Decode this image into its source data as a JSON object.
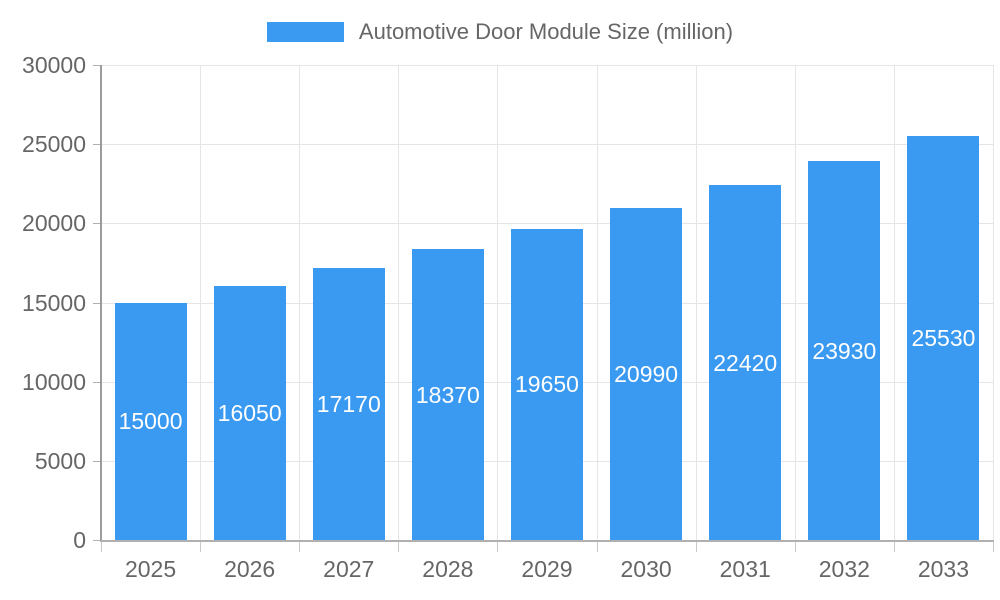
{
  "chart_data": {
    "type": "bar",
    "title": "Automotive Door Module Size (million)",
    "categories": [
      "2025",
      "2026",
      "2027",
      "2028",
      "2029",
      "2030",
      "2031",
      "2032",
      "2033"
    ],
    "values": [
      15000,
      16050,
      17170,
      18370,
      19650,
      20990,
      22420,
      23930,
      25530
    ],
    "xlabel": "",
    "ylabel": "",
    "ylim": [
      0,
      30000
    ],
    "yticks": [
      0,
      5000,
      10000,
      15000,
      20000,
      25000,
      30000
    ],
    "grid": true,
    "legend_position": "top",
    "value_labels": "inside-center",
    "colors": {
      "bar": "#3a99f0",
      "bar_value_text": "#ffffff",
      "axis_text": "#666666",
      "gridline": "#e5e5e5",
      "axis_line": "#9b9b9b",
      "background": "#ffffff"
    }
  }
}
